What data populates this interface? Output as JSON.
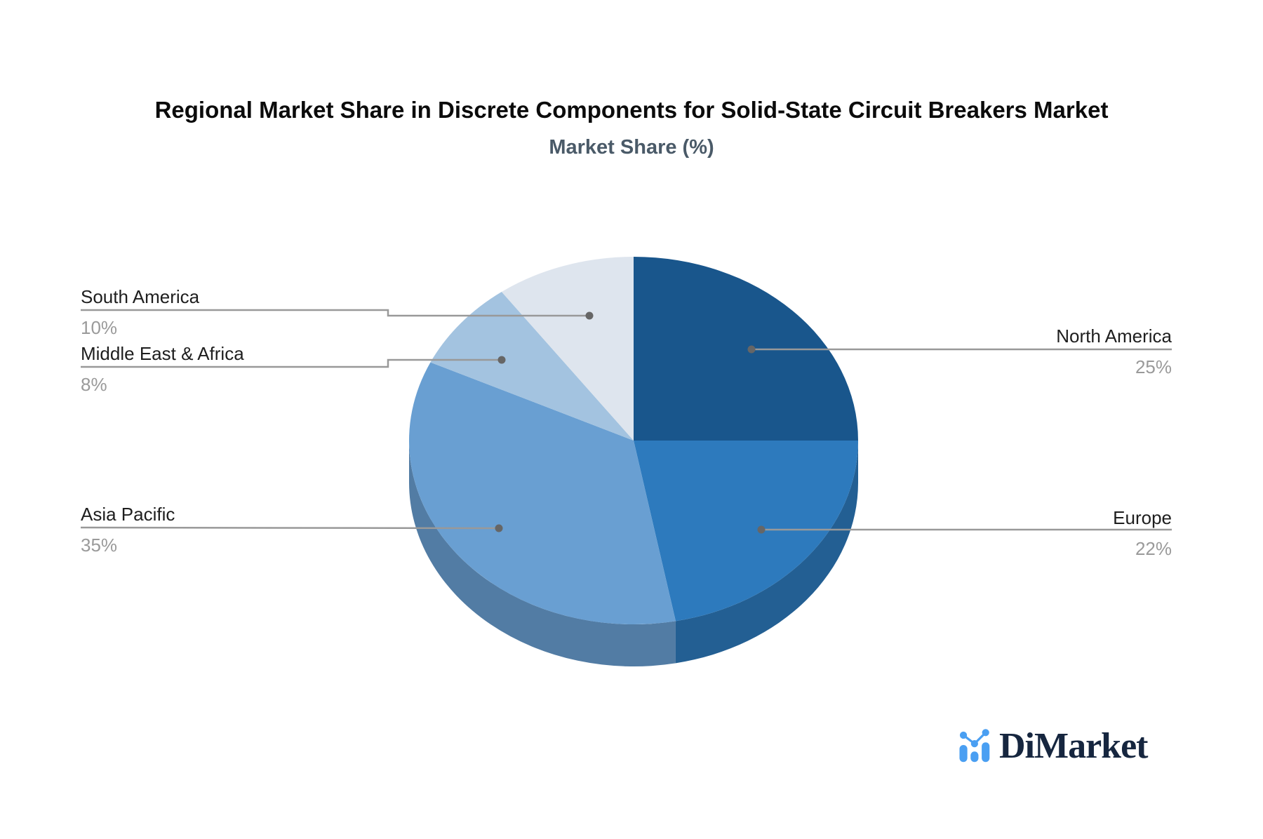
{
  "chart_data": {
    "type": "pie",
    "title": "Regional Market Share in Discrete Components for Solid-State Circuit Breakers Market",
    "subtitle": "Market Share (%)",
    "unit": "%",
    "style": "3d-pie",
    "direction": "clockwise",
    "start_angle_deg": 0,
    "legend_position": "callout-labels",
    "points": [
      {
        "label": "North America",
        "value": 25,
        "value_label": "25%",
        "color": "#19568C"
      },
      {
        "label": "Europe",
        "value": 22,
        "value_label": "22%",
        "color": "#2D7ABD"
      },
      {
        "label": "Asia Pacific",
        "value": 35,
        "value_label": "35%",
        "color": "#699FD2"
      },
      {
        "label": "Middle East & Africa",
        "value": 8,
        "value_label": "8%",
        "color": "#A3C3E0"
      },
      {
        "label": "South America",
        "value": 10,
        "value_label": "10%",
        "color": "#DEE5EE"
      }
    ]
  },
  "branding": {
    "logo_text": "DiMarket",
    "logo_text_color": "#16263F",
    "logo_icon_color": "#4A9FF2"
  },
  "colors": {
    "background": "#FFFFFF",
    "leader_line": "#999999",
    "leader_dot": "#666666",
    "label_text": "#1E1E1E",
    "value_text": "#9A9A9A",
    "subtitle_text": "#4A5A68"
  }
}
